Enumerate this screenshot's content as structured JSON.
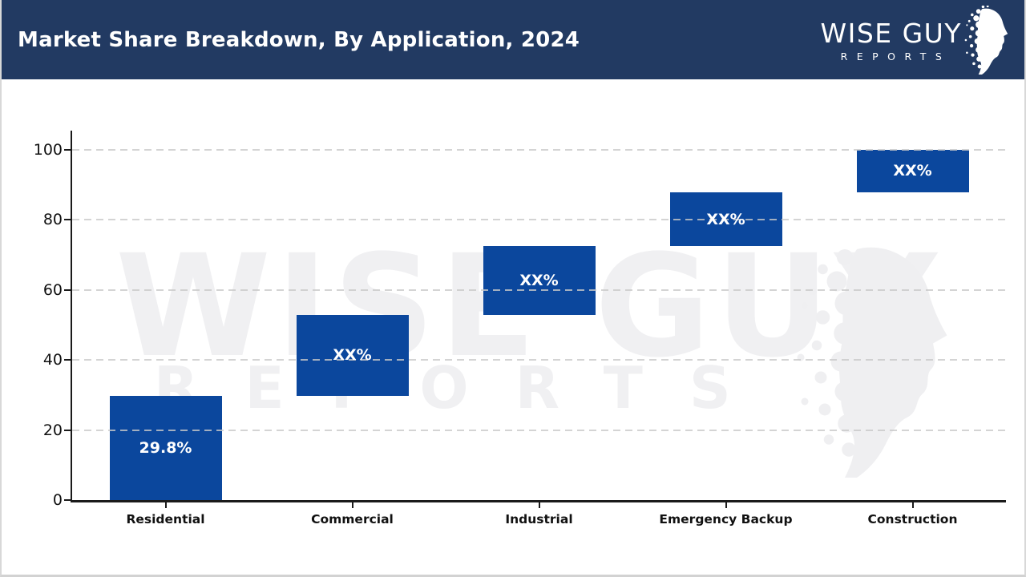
{
  "header": {
    "title": "Market Share Breakdown, By Application, 2024",
    "logo": {
      "line1": "WISE GUY",
      "line2": "REPORTS"
    }
  },
  "watermark": {
    "line1": "WISE GUY",
    "line2": "REPORTS"
  },
  "colors": {
    "header_bg": "#223a62",
    "bar": "#0b479d",
    "bar_label_text": "#ffffff",
    "axis": "#1a1a1a",
    "grid": "#d3d3d3",
    "watermark": "#f0f0f2"
  },
  "chart_data": {
    "type": "bar",
    "subtype": "waterfall-floating-bars",
    "title": "Market Share Breakdown, By Application, 2024",
    "categories": [
      "Residential",
      "Commercial",
      "Industrial",
      "Emergency Backup",
      "Construction"
    ],
    "segments": [
      {
        "category": "Residential",
        "start": 0,
        "end": 29.8,
        "value": 29.8,
        "label": "29.8%"
      },
      {
        "category": "Commercial",
        "start": 29.8,
        "end": 52.9,
        "value": 23.1,
        "label": "XX%"
      },
      {
        "category": "Industrial",
        "start": 52.9,
        "end": 72.5,
        "value": 19.6,
        "label": "XX%"
      },
      {
        "category": "Emergency Backup",
        "start": 72.5,
        "end": 87.9,
        "value": 15.4,
        "label": "XX%"
      },
      {
        "category": "Construction",
        "start": 87.9,
        "end": 100,
        "value": 12.1,
        "label": "XX%"
      }
    ],
    "yticks": [
      0,
      20,
      40,
      60,
      80,
      100
    ],
    "ylim": [
      0,
      105.7
    ],
    "xlabel": "",
    "ylabel": "",
    "grid": "horizontal-dashed",
    "legend": "none",
    "units": "percent"
  }
}
